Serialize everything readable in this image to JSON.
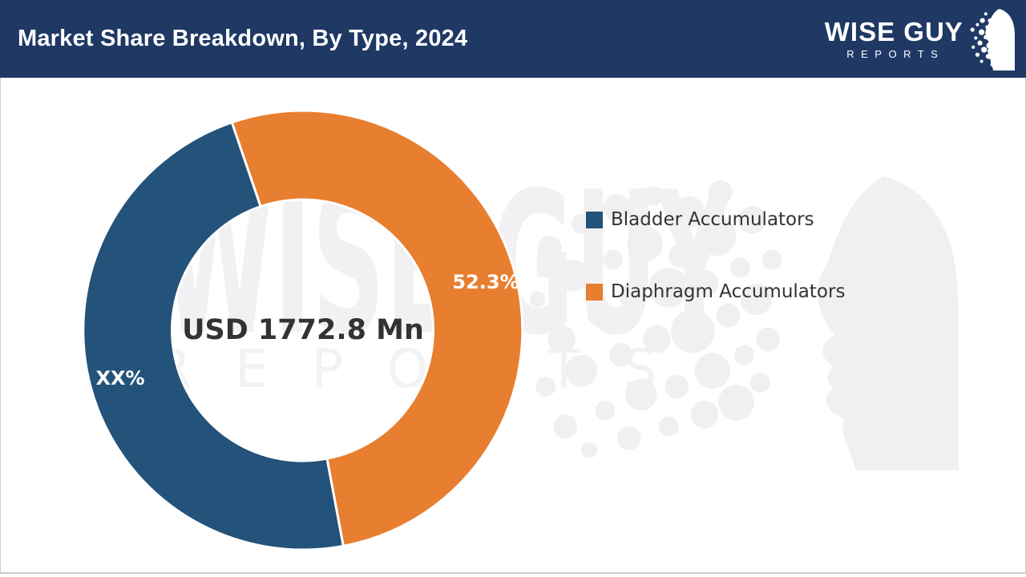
{
  "header": {
    "title": "Market Share Breakdown, By Type, 2024"
  },
  "brand": {
    "name": "WISE GUY",
    "subtitle": "REPORTS"
  },
  "watermark": {
    "title": "WISE GUY",
    "subtitle": "REPORTS"
  },
  "chart_data": {
    "type": "pie",
    "subtype": "donut",
    "title": "Market Share Breakdown, By Type, 2024",
    "center_label": "USD 1772.8 Mn",
    "units": "percent of market share",
    "start_angle_deg": 169.4,
    "direction": "clockwise",
    "inner_radius_ratio": 0.595,
    "legend_position": "right",
    "slices": [
      {
        "label": "Bladder Accumulators",
        "value_pct": 47.7,
        "display_label": "XX%",
        "color": "#23527A"
      },
      {
        "label": "Diaphragm Accumulators",
        "value_pct": 52.3,
        "display_label": "52.3%",
        "color": "#E87E2F"
      }
    ],
    "colors": {
      "slice_gap": "#FFFFFF",
      "center_text": "#333333",
      "slice_label_text": "#FFFFFF"
    }
  },
  "theme": {
    "header_bg": "#1F3864",
    "header_text": "#FFFFFF",
    "content_bg": "#FFFFFF",
    "frame_border": "#C9CBCD",
    "watermark_color": "#F1F1F4",
    "legend_text": "#333333"
  }
}
